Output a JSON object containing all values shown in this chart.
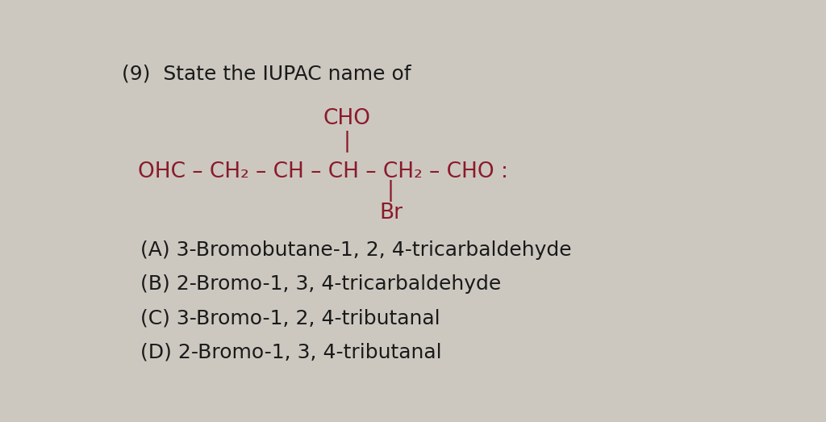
{
  "background_color": "#ccc8c0",
  "title_text": "(9)  State the IUPAC name of",
  "title_color": "#1a1a1a",
  "title_fontsize": 18,
  "chemical_color": "#8b1a2a",
  "options_color": "#1a1a1a",
  "options_fontsize": 18,
  "chem_fontsize": 19,
  "options": [
    "(A) 3-Bromobutane-1, 2, 4-tricarbaldehyde",
    "(B) 2-Bromo-1, 3, 4-tricarbaldehyde",
    "(C) 3-Bromo-1, 2, 4-tributanal",
    "(D) 2-Bromo-1, 3, 4-tributanal"
  ],
  "chain_text": "OHC – CH₂ – CH – CH – CH₂ – CHO :",
  "cho_branch": "CHO",
  "br_branch": "Br",
  "pipe": "|"
}
